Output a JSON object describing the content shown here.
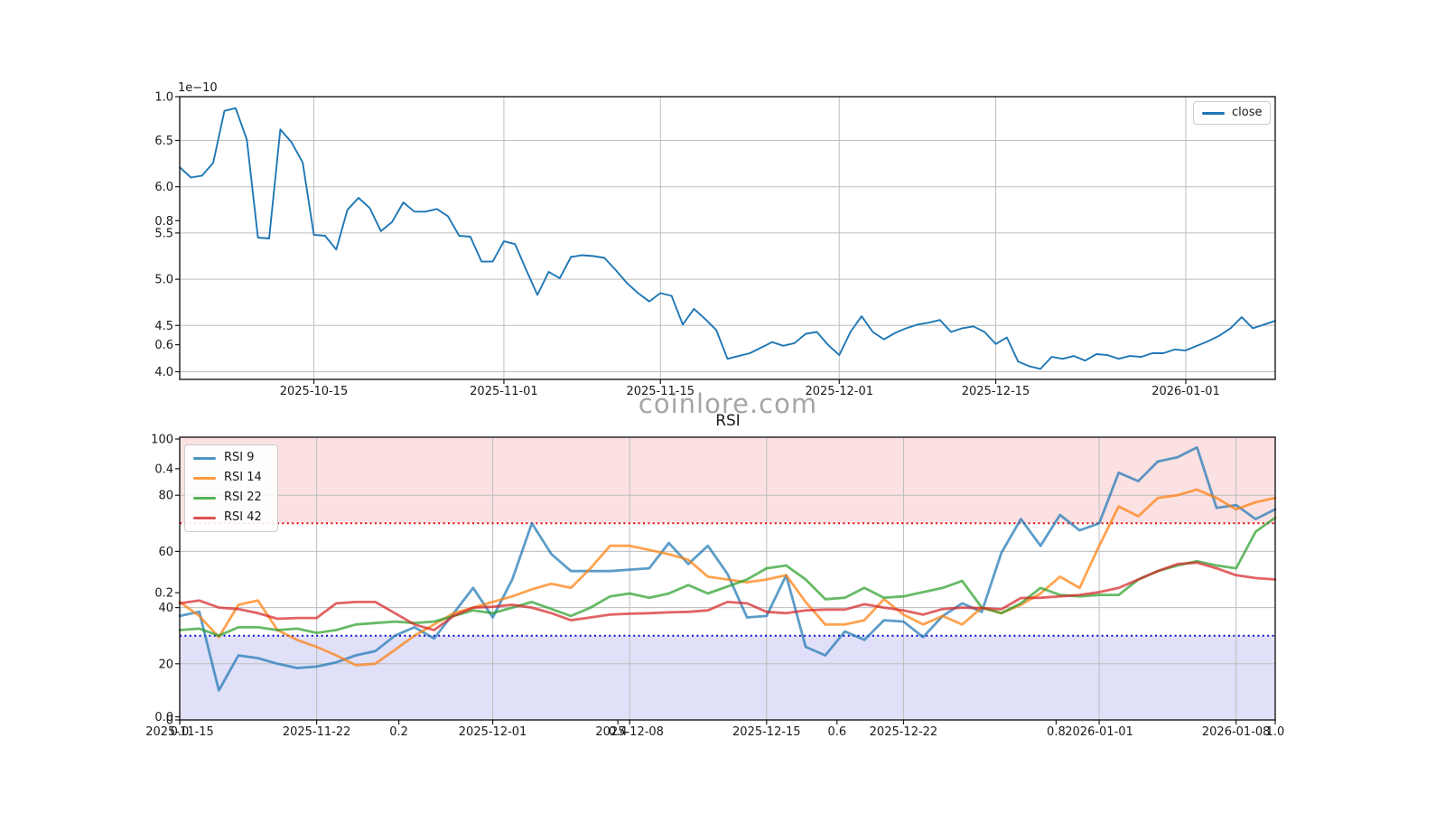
{
  "watermark": "coinlore.com",
  "section_title": "RSI",
  "colors": {
    "grid": "#bdbdbd",
    "spine": "#1a1a1a",
    "tick_text": "#1a1a1a",
    "overbought_band": "rgba(228,26,40,0.13)",
    "oversold_band": "rgba(85,85,215,0.18)",
    "overbought_line": "#e00000",
    "oversold_line": "#0000cd"
  },
  "chart_data": [
    {
      "type": "line",
      "name": "price",
      "offset_text": "1e−10",
      "unit_scale": "1e-10",
      "x_start": "2025-10-03",
      "x_freq": "daily",
      "ylim": [
        3.93,
        6.97
      ],
      "y_ticks": [
        {
          "label": "6.5",
          "value": 6.5
        },
        {
          "label": "6.0",
          "value": 6.0
        },
        {
          "label": "5.5",
          "value": 5.5
        },
        {
          "label": "5.0",
          "value": 5.0
        },
        {
          "label": "4.5",
          "value": 4.5
        },
        {
          "label": "4.0",
          "value": 4.0
        }
      ],
      "overlay_y_ticks": [
        {
          "label": "1.0",
          "f": 1.0
        },
        {
          "label": "0.8",
          "f": 0.8
        },
        {
          "label": "0.6",
          "f": 0.6
        }
      ],
      "x_ticks": [
        {
          "label": "2025-10-15",
          "day": 12
        },
        {
          "label": "2025-11-01",
          "day": 29
        },
        {
          "label": "2025-11-15",
          "day": 43
        },
        {
          "label": "2025-12-01",
          "day": 59
        },
        {
          "label": "2025-12-15",
          "day": 73
        },
        {
          "label": "2026-01-01",
          "day": 90
        }
      ],
      "series": [
        {
          "name": "close",
          "color": "#1f77b4",
          "values": [
            6.21,
            6.1,
            6.12,
            6.26,
            6.82,
            6.85,
            6.51,
            5.45,
            5.44,
            6.62,
            6.48,
            6.26,
            5.48,
            5.47,
            5.32,
            5.75,
            5.88,
            5.77,
            5.52,
            5.62,
            5.83,
            5.73,
            5.73,
            5.76,
            5.68,
            5.47,
            5.46,
            5.19,
            5.19,
            5.41,
            5.38,
            5.1,
            4.83,
            5.08,
            5.01,
            5.24,
            5.26,
            5.25,
            5.23,
            5.1,
            4.96,
            4.85,
            4.76,
            4.85,
            4.82,
            4.51,
            4.68,
            4.57,
            4.45,
            4.14,
            4.17,
            4.2,
            4.26,
            4.32,
            4.28,
            4.31,
            4.41,
            4.43,
            4.29,
            4.18,
            4.43,
            4.6,
            4.43,
            4.35,
            4.42,
            4.47,
            4.51,
            4.53,
            4.56,
            4.43,
            4.47,
            4.49,
            4.43,
            4.3,
            4.37,
            4.11,
            4.06,
            4.03,
            4.16,
            4.14,
            4.17,
            4.12,
            4.19,
            4.18,
            4.14,
            4.17,
            4.16,
            4.2,
            4.2,
            4.24,
            4.23,
            4.28,
            4.33,
            4.39,
            4.47,
            4.59,
            4.47,
            4.51,
            4.55
          ]
        }
      ]
    },
    {
      "type": "line",
      "name": "rsi",
      "title": "RSI",
      "x_start": "2025-11-15",
      "x_freq": "daily",
      "ylim": [
        0,
        100
      ],
      "y_ticks": [
        {
          "label": "100",
          "value": 100
        },
        {
          "label": "80",
          "value": 80
        },
        {
          "label": "60",
          "value": 60
        },
        {
          "label": "40",
          "value": 40
        },
        {
          "label": "20",
          "value": 20
        },
        {
          "label": "0",
          "value": 0
        }
      ],
      "overlay_y_ticks": [
        {
          "label": "0.4",
          "f": 0.4
        },
        {
          "label": "0.2",
          "f": 0.2
        },
        {
          "label": "0.0",
          "f": 0.0
        }
      ],
      "x_ticks": [
        {
          "label": "2025-11-15",
          "day": 0
        },
        {
          "label": "2025-11-22",
          "day": 7
        },
        {
          "label": "2025-12-01",
          "day": 16
        },
        {
          "label": "2025-12-08",
          "day": 23
        },
        {
          "label": "2025-12-15",
          "day": 30
        },
        {
          "label": "2025-12-22",
          "day": 37
        },
        {
          "label": "2026-01-01",
          "day": 47
        },
        {
          "label": "2026-01-08",
          "day": 54
        }
      ],
      "overlay_x_ticks": [
        {
          "label": "0.0",
          "f": 0.0
        },
        {
          "label": "0.2",
          "f": 0.2
        },
        {
          "label": "0.4",
          "f": 0.4
        },
        {
          "label": "0.6",
          "f": 0.6
        },
        {
          "label": "0.8",
          "f": 0.8
        },
        {
          "label": "1.0",
          "f": 1.0
        }
      ],
      "bands": [
        {
          "from": 70,
          "to": 103,
          "color": "rgba(228,26,40,0.13)",
          "meaning": "overbought"
        },
        {
          "from": -3,
          "to": 30,
          "color": "rgba(85,85,215,0.18)",
          "meaning": "oversold"
        }
      ],
      "hlines": [
        {
          "value": 70,
          "color": "#e00000",
          "style": "dotted"
        },
        {
          "value": 30,
          "color": "#0000cd",
          "style": "dotted"
        }
      ],
      "series": [
        {
          "name": "RSI 9",
          "color": "#1f77b4",
          "values": [
            37,
            38.5,
            10.5,
            23,
            22,
            20,
            18.5,
            19,
            20.5,
            23,
            24.5,
            30,
            33,
            29,
            38,
            47,
            36.5,
            50,
            70,
            59,
            53,
            53,
            53,
            53.5,
            54,
            63,
            55.5,
            62,
            52,
            36.5,
            37,
            51.5,
            26,
            23,
            31.5,
            28.5,
            35.5,
            35,
            29.5,
            37,
            41.5,
            38.5,
            59.5,
            71.5,
            62,
            73,
            67.5,
            70,
            88,
            85,
            92,
            93.5,
            97,
            75.5,
            76.5,
            71.5,
            75
          ]
        },
        {
          "name": "RSI 14",
          "color": "#ff7f0e",
          "values": [
            42,
            37,
            29.5,
            41,
            42.5,
            32,
            28.5,
            26,
            23,
            19.5,
            20,
            25,
            30,
            34,
            38,
            40,
            42,
            44,
            46.5,
            48.5,
            47,
            54,
            62,
            62,
            60.5,
            59,
            57,
            51,
            50,
            49,
            50,
            51.5,
            42,
            34,
            34,
            35.5,
            43,
            37.5,
            34,
            37,
            34,
            40,
            38,
            41,
            45,
            51,
            47,
            62,
            76,
            72.5,
            79,
            80,
            82,
            79,
            75,
            77.5,
            79
          ]
        },
        {
          "name": "RSI 22",
          "color": "#2ca02c",
          "values": [
            32,
            32.5,
            30,
            33,
            33,
            32,
            32.5,
            31,
            32,
            34,
            34.5,
            35,
            34.5,
            35,
            37,
            39,
            38,
            40,
            42,
            39.5,
            37,
            40,
            44,
            45,
            43.5,
            45,
            48,
            45,
            47.5,
            50,
            54,
            55,
            50,
            43,
            43.5,
            47,
            43.5,
            44,
            45.5,
            47,
            49.5,
            40,
            38,
            41.5,
            47,
            44.5,
            44,
            44.5,
            44.5,
            50,
            53,
            55,
            56.5,
            55,
            54,
            67,
            72
          ]
        },
        {
          "name": "RSI 42",
          "color": "#d62728",
          "values": [
            41.5,
            42.5,
            40,
            39.5,
            38,
            36,
            36.3,
            36.3,
            41.5,
            42,
            42,
            38,
            34,
            32,
            37,
            40,
            40.3,
            41,
            40,
            38,
            35.5,
            36.5,
            37.5,
            37.8,
            38,
            38.3,
            38.5,
            39,
            42,
            41.5,
            38.5,
            38,
            39,
            39.3,
            39.3,
            41.2,
            40,
            39,
            37.5,
            39.5,
            40,
            39.8,
            39.4,
            43.4,
            43.5,
            44,
            44.5,
            45.5,
            47,
            50,
            53,
            55.5,
            56,
            54,
            51.5,
            50.5,
            50
          ]
        }
      ]
    }
  ]
}
